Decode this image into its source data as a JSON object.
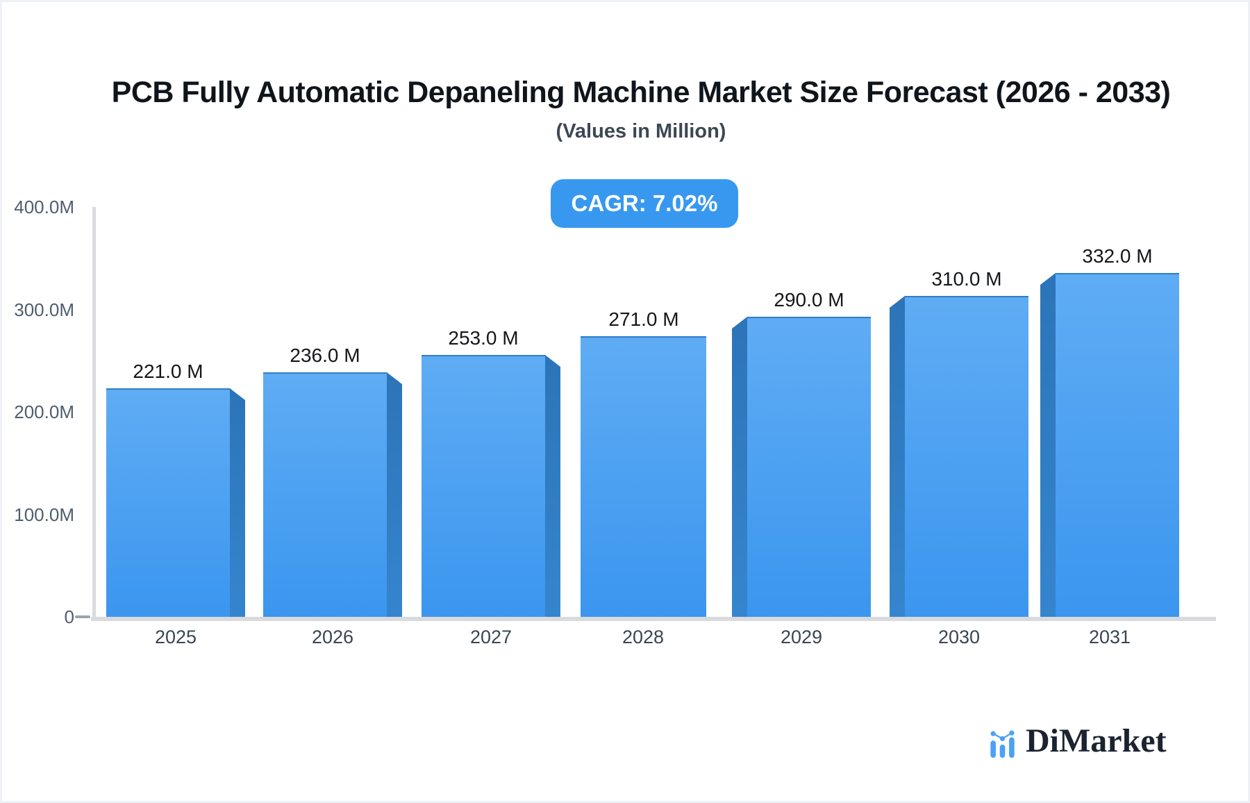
{
  "header": {
    "title": "PCB Fully Automatic Depaneling Machine Market Size Forecast (2026 - 2033)",
    "subtitle": "(Values in Million)",
    "cagr_label": "CAGR: 7.02%"
  },
  "chart_data": {
    "type": "bar",
    "title": "PCB Fully Automatic Depaneling Machine Market Size Forecast (2026 - 2033)",
    "subtitle": "(Values in Million)",
    "unit": "Million",
    "categories": [
      "2025",
      "2026",
      "2027",
      "2028",
      "2029",
      "2030",
      "2031"
    ],
    "values": [
      221,
      236,
      253,
      271,
      290,
      310,
      332
    ],
    "bar_labels": [
      "221.0 M",
      "236.0 M",
      "253.0 M",
      "271.0 M",
      "290.0 M",
      "310.0 M",
      "332.0 M"
    ],
    "y_ticks": [
      "400.0M",
      "300.0M",
      "200.0M",
      "100.0M",
      "0"
    ],
    "ylim": [
      0,
      400
    ],
    "grid": false,
    "legend": false,
    "cagr": "7.02%",
    "style_3d": true
  },
  "colors": {
    "bar_top": "#5FACF4",
    "bar_bottom": "#3B96EF",
    "bar_side_top": "#2C74B8",
    "bar_side_bottom": "#3585CE",
    "badge_bg": "#3898EF",
    "logo_blue": "#4BA1F6",
    "logo_text": "#1B2330",
    "axis_gray": "#D9DBDF"
  },
  "footer": {
    "brand": "DiMarket"
  }
}
